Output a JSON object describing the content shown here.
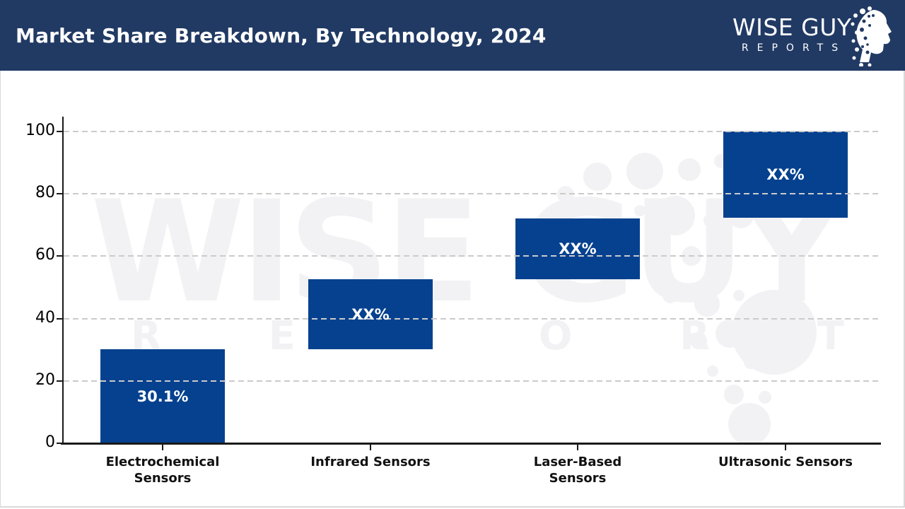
{
  "header": {
    "title": "Market Share Breakdown, By Technology, 2024",
    "logo": {
      "name_line": "WISE GUY",
      "sub_line": "REPORTS"
    }
  },
  "watermark": {
    "name_line": "WISE GUY",
    "sub_line": "R E P O R T S"
  },
  "chart_data": {
    "type": "bar",
    "variant": "waterfall",
    "title": "Market Share Breakdown, By Technology, 2024",
    "unit": "%",
    "ylim": [
      0,
      100
    ],
    "yticks": [
      0,
      20,
      40,
      60,
      80,
      100
    ],
    "grid": "horizontal-dashed",
    "legend": "none",
    "bar_color": "#05418f",
    "bars": [
      {
        "category": "Electrochemical Sensors",
        "category_lines": [
          "Electrochemical",
          "Sensors"
        ],
        "start": 0,
        "end": 30.1,
        "label": "30.1%"
      },
      {
        "category": "Infrared Sensors",
        "category_lines": [
          "Infrared Sensors"
        ],
        "start": 30.1,
        "end": 52.6,
        "label": "XX%"
      },
      {
        "category": "Laser-Based Sensors",
        "category_lines": [
          "Laser-Based",
          "Sensors"
        ],
        "start": 52.6,
        "end": 72.2,
        "label": "XX%"
      },
      {
        "category": "Ultrasonic Sensors",
        "category_lines": [
          "Ultrasonic Sensors"
        ],
        "start": 72.3,
        "end": 100,
        "label": "XX%"
      }
    ]
  },
  "colors": {
    "header_bg": "#213a64",
    "bar": "#05418f",
    "grid": "#cbcbcb",
    "axis": "#1a1a1a",
    "watermark": "#f2f2f4",
    "title_text": "#ffffff"
  }
}
